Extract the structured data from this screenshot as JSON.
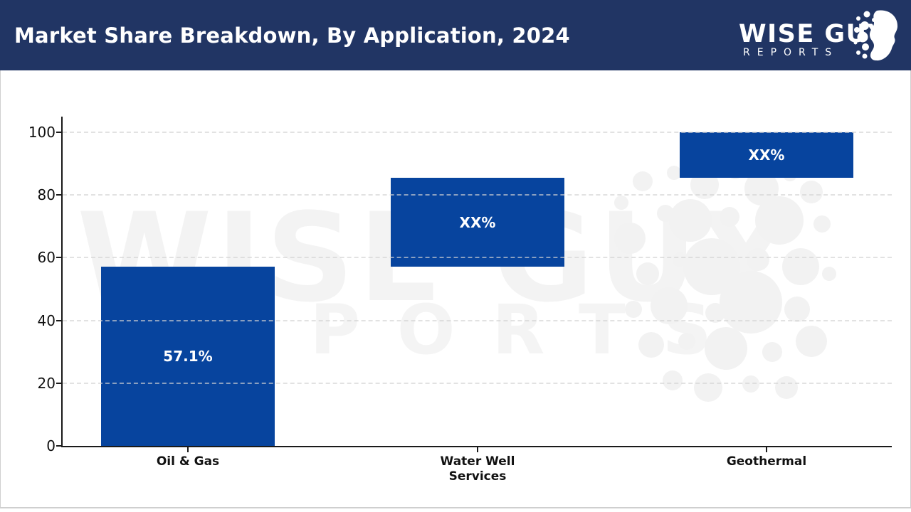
{
  "header": {
    "title": "Market Share Breakdown, By Application, 2024",
    "logo": {
      "line1": "WISE GUY",
      "line2": "REPORTS"
    }
  },
  "watermark": {
    "line1": "WISE GUY",
    "line2": "REPORTS"
  },
  "colors": {
    "header_bg": "#213564",
    "bar": "#07449e",
    "gridline": "#d9d9d9",
    "axis": "#1a1a1a",
    "bar_label_text": "#ffffff",
    "watermark_gray": "#f3f3f3",
    "card_border": "#cfcfcf"
  },
  "chart_data": {
    "type": "bar",
    "subtype": "waterfall",
    "title": "Market Share Breakdown, By Application, 2024",
    "categories": [
      "Oil & Gas",
      "Water Well Services",
      "Geothermal"
    ],
    "bars": [
      {
        "category": "Oil & Gas",
        "start": 0,
        "end": 57.1,
        "value": 57.1,
        "label": "57.1%"
      },
      {
        "category": "Water Well Services",
        "start": 57.1,
        "end": 85.4,
        "value": 28.3,
        "label": "XX%"
      },
      {
        "category": "Geothermal",
        "start": 85.4,
        "end": 100,
        "value": 14.6,
        "label": "XX%"
      }
    ],
    "ylim": [
      0,
      100
    ],
    "yticks": [
      0,
      20,
      40,
      60,
      80,
      100
    ],
    "xlabel": "",
    "ylabel": "",
    "grid": "horizontal-dashed",
    "legend": "none",
    "bar_color": "#07449e"
  }
}
